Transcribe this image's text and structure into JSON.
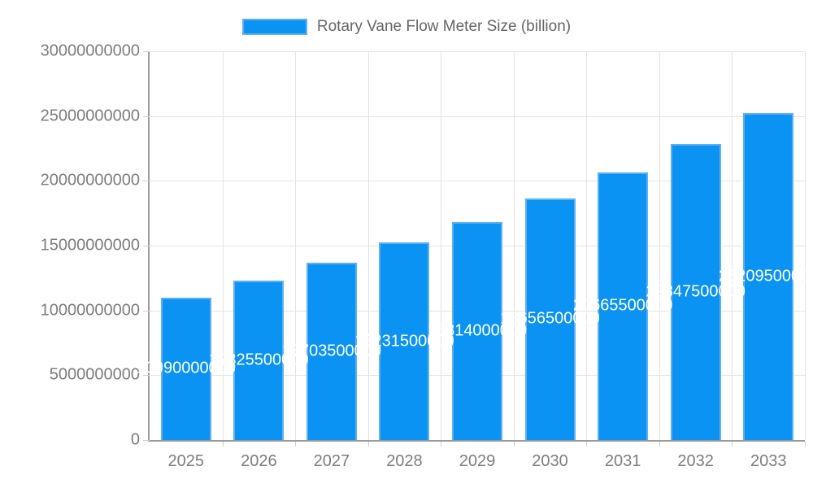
{
  "legend": {
    "label": "Rotary Vane Flow Meter Size (billion)"
  },
  "chart_data": {
    "type": "bar",
    "title": "Rotary Vane Flow Meter Size (billion)",
    "categories": [
      "2025",
      "2026",
      "2027",
      "2028",
      "2029",
      "2030",
      "2031",
      "2032",
      "2033"
    ],
    "values": [
      10990000000,
      12325500000,
      13703500000,
      15231500000,
      16814000000,
      18656500000,
      20665500000,
      22847500000,
      25209500000
    ],
    "bar_labels": [
      "10990000000",
      "12325500000",
      "13703500000",
      "15231500000",
      "16814000000",
      "18656500000",
      "20665500000",
      "22847500000",
      "25209500000"
    ],
    "xlabel": "",
    "ylabel": "",
    "ylim": [
      0,
      30000000000
    ],
    "y_tick_values": [
      0,
      5000000000,
      10000000000,
      15000000000,
      20000000000,
      25000000000,
      30000000000
    ],
    "y_tick_labels": [
      "0",
      "5000000000",
      "10000000000",
      "15000000000",
      "20000000000",
      "25000000000",
      "30000000000"
    ],
    "grid": true,
    "legend_position": "top",
    "colors": {
      "bar": "#0b93f4",
      "bar_border": "#5eb0f4",
      "bar_label": "#ffffff",
      "axis_line": "#9b9b9b",
      "gridline": "#e4e4e4",
      "tick_stub": "#cfcfcf",
      "tick_label": "#7d7d7d",
      "legend_text": "#666666",
      "background": "#ffffff"
    }
  }
}
